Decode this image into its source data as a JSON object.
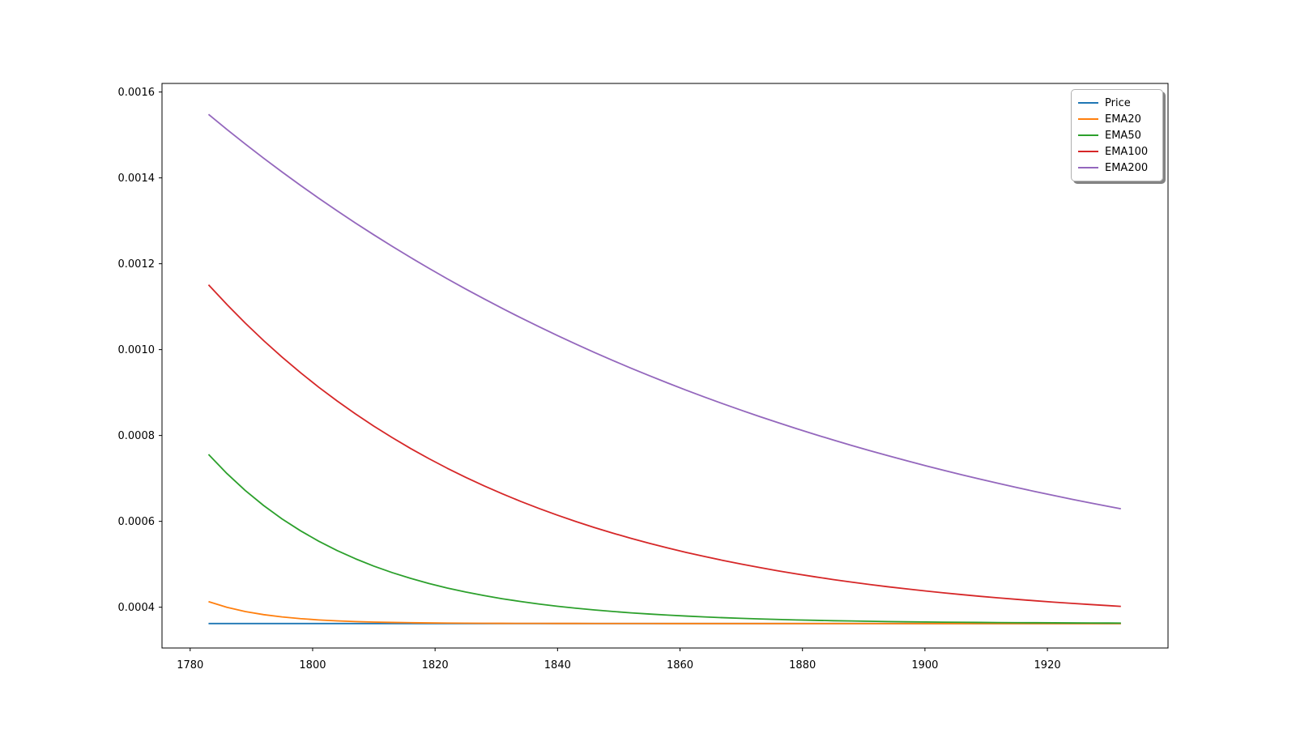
{
  "figure": {
    "background": "#ffffff",
    "axis_color": "#000000"
  },
  "chart_data": {
    "type": "line",
    "xlim": [
      1775.4,
      1939.7
    ],
    "ylim": [
      0.000305,
      0.00162
    ],
    "grid": false,
    "xticks": [
      1780,
      1800,
      1820,
      1840,
      1860,
      1880,
      1900,
      1920
    ],
    "xtick_labels": [
      "1780",
      "1800",
      "1820",
      "1840",
      "1860",
      "1880",
      "1900",
      "1920"
    ],
    "yticks": [
      0.0004,
      0.0006,
      0.0008,
      0.001,
      0.0012,
      0.0014,
      0.0016
    ],
    "ytick_labels": [
      "0.0004",
      "0.0006",
      "0.0008",
      "0.0010",
      "0.0012",
      "0.0014",
      "0.0016"
    ],
    "legend": {
      "location": "upper right",
      "entries": [
        "Price",
        "EMA20",
        "EMA50",
        "EMA100",
        "EMA200"
      ]
    },
    "x": [
      1783,
      1786,
      1789,
      1792,
      1795,
      1798,
      1801,
      1804,
      1807,
      1810,
      1813,
      1816,
      1819,
      1822,
      1825,
      1828,
      1831,
      1834,
      1837,
      1840,
      1843,
      1846,
      1849,
      1852,
      1855,
      1858,
      1861,
      1864,
      1867,
      1870,
      1873,
      1876,
      1879,
      1882,
      1885,
      1888,
      1891,
      1894,
      1897,
      1900,
      1903,
      1906,
      1909,
      1912,
      1915,
      1918,
      1921,
      1924,
      1927,
      1930,
      1932
    ],
    "series": [
      {
        "name": "Price",
        "color": "#1f77b4",
        "values": [
          0.000362,
          0.000362,
          0.000362,
          0.000362,
          0.000362,
          0.000362,
          0.000362,
          0.000362,
          0.000362,
          0.000362,
          0.000362,
          0.000362,
          0.000362,
          0.000362,
          0.000362,
          0.000362,
          0.000362,
          0.000362,
          0.000362,
          0.000362,
          0.000362,
          0.000362,
          0.000362,
          0.000362,
          0.000362,
          0.000362,
          0.000362,
          0.000362,
          0.000362,
          0.000362,
          0.000362,
          0.000362,
          0.000362,
          0.000362,
          0.000362,
          0.000362,
          0.000362,
          0.000362,
          0.000362,
          0.000362,
          0.000362,
          0.000362,
          0.000362,
          0.000362,
          0.000362,
          0.000362,
          0.000362,
          0.000362,
          0.000362,
          0.000362,
          0.000362
        ]
      },
      {
        "name": "EMA20",
        "color": "#ff7f0e",
        "values": [
          0.000413,
          0.0003998,
          0.00039,
          0.0003827,
          0.0003774,
          0.0003734,
          0.0003704,
          0.0003682,
          0.0003666,
          0.0003654,
          0.0003645,
          0.0003639,
          0.0003634,
          0.000363,
          0.0003628,
          0.0003626,
          0.0003624,
          0.0003623,
          0.0003623,
          0.0003622,
          0.0003622,
          0.0003621,
          0.0003621,
          0.0003621,
          0.0003621,
          0.000362,
          0.000362,
          0.000362,
          0.000362,
          0.000362,
          0.000362,
          0.000362,
          0.000362,
          0.000362,
          0.000362,
          0.000362,
          0.000362,
          0.000362,
          0.000362,
          0.000362,
          0.000362,
          0.000362,
          0.000362,
          0.000362,
          0.000362,
          0.000362,
          0.000362,
          0.000362,
          0.000362,
          0.000362,
          0.000362
        ]
      },
      {
        "name": "EMA50",
        "color": "#2ca02c",
        "values": [
          0.000756,
          0.0007114,
          0.0006719,
          0.0006368,
          0.0006057,
          0.0005782,
          0.0005537,
          0.000532,
          0.0005128,
          0.0004957,
          0.0004806,
          0.0004672,
          0.0004553,
          0.0004447,
          0.0004354,
          0.0004271,
          0.0004197,
          0.0004132,
          0.0004074,
          0.0004022,
          0.0003977,
          0.0003936,
          0.0003901,
          0.0003869,
          0.0003841,
          0.0003816,
          0.0003794,
          0.0003774,
          0.0003756,
          0.0003741,
          0.0003727,
          0.0003715,
          0.0003704,
          0.0003695,
          0.0003686,
          0.0003679,
          0.0003672,
          0.0003666,
          0.0003661,
          0.0003656,
          0.0003652,
          0.0003649,
          0.0003645,
          0.0003642,
          0.000364,
          0.0003638,
          0.0003636,
          0.0003634,
          0.0003632,
          0.0003631,
          0.000363
        ]
      },
      {
        "name": "EMA100",
        "color": "#d62728",
        "values": [
          0.001151,
          0.0011051,
          0.0010618,
          0.001021,
          0.0009826,
          0.0009465,
          0.0009124,
          0.0008804,
          0.0008502,
          0.0008217,
          0.000795,
          0.0007697,
          0.000746,
          0.0007236,
          0.0007026,
          0.0006827,
          0.000664,
          0.0006464,
          0.0006299,
          0.0006143,
          0.0005996,
          0.0005857,
          0.0005727,
          0.0005604,
          0.0005489,
          0.000538,
          0.0005277,
          0.0005181,
          0.000509,
          0.0005004,
          0.0004924,
          0.0004848,
          0.0004776,
          0.0004709,
          0.0004645,
          0.0004586,
          0.0004529,
          0.0004476,
          0.0004427,
          0.000438,
          0.0004335,
          0.0004294,
          0.0004254,
          0.0004217,
          0.0004183,
          0.000415,
          0.0004119,
          0.000409,
          0.0004063,
          0.0004037,
          0.000402
        ]
      },
      {
        "name": "EMA200",
        "color": "#9467bd",
        "values": [
          0.001548,
          0.0015129,
          0.0014789,
          0.0014459,
          0.0014139,
          0.0013828,
          0.0013526,
          0.0013233,
          0.0012949,
          0.0012673,
          0.0012406,
          0.0012146,
          0.0011894,
          0.0011649,
          0.0011412,
          0.0011182,
          0.0010958,
          0.0010741,
          0.0010531,
          0.0010327,
          0.0010128,
          0.0009936,
          0.0009749,
          0.0009568,
          0.0009392,
          0.0009222,
          0.0009056,
          0.0008895,
          0.0008739,
          0.0008588,
          0.0008441,
          0.0008299,
          0.000816,
          0.0008026,
          0.0007896,
          0.0007769,
          0.0007647,
          0.0007528,
          0.0007412,
          0.00073,
          0.0007191,
          0.0007086,
          0.0006983,
          0.0006884,
          0.0006787,
          0.0006694,
          0.0006603,
          0.0006515,
          0.0006429,
          0.0006346,
          0.0006292
        ]
      }
    ]
  }
}
